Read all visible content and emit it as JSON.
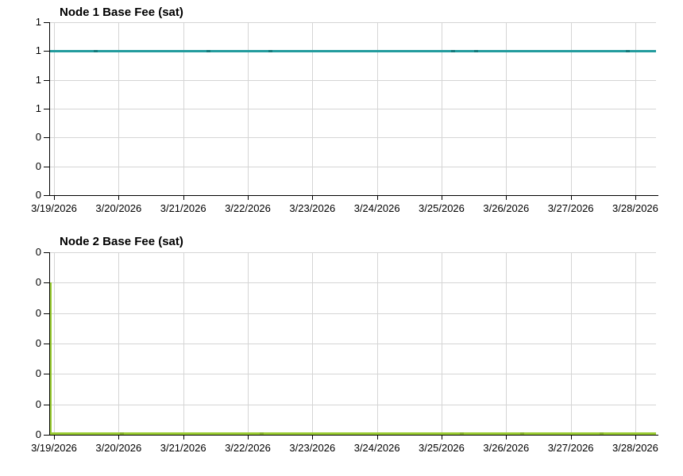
{
  "page": {
    "background_color": "#ffffff",
    "text_color": "#000000"
  },
  "chart_data": [
    {
      "type": "line",
      "title": "Node 1 Base Fee (sat)",
      "xlabel": "",
      "ylabel": "",
      "grid": true,
      "grid_color": "#d5d5d5",
      "axis_color": "#000000",
      "legend": "none",
      "y_tick_labels": [
        "1",
        "1",
        "1",
        "1",
        "0",
        "0",
        "0"
      ],
      "ylim": [
        0,
        1.2
      ],
      "x_tick_labels": [
        "3/19/2026",
        "3/20/2026",
        "3/21/2026",
        "3/22/2026",
        "3/23/2026",
        "3/24/2026",
        "3/25/2026",
        "3/26/2026",
        "3/27/2026",
        "3/28/2026"
      ],
      "categories": [
        "3/19/2026",
        "3/20/2026",
        "3/21/2026",
        "3/22/2026",
        "3/23/2026",
        "3/24/2026",
        "3/25/2026",
        "3/26/2026",
        "3/27/2026",
        "3/28/2026"
      ],
      "series": [
        {
          "name": "Node 1 Base Fee (sat)",
          "color": "#239c9e",
          "marker_color": "#12797b",
          "values": [
            1,
            1,
            1,
            1,
            1,
            1,
            1,
            1,
            1,
            1
          ],
          "constant_value": 1,
          "points_frac": [
            [
              0,
              0.8333
            ],
            [
              1,
              0.8333
            ]
          ],
          "marker_x_fracs": [
            0.076,
            0.263,
            0.364,
            0.665,
            0.704,
            0.953
          ]
        }
      ]
    },
    {
      "type": "line",
      "title": "Node 2 Base Fee (sat)",
      "xlabel": "",
      "ylabel": "",
      "grid": true,
      "grid_color": "#d5d5d5",
      "axis_color": "#000000",
      "legend": "none",
      "y_tick_labels": [
        "0",
        "0",
        "0",
        "0",
        "0",
        "0",
        "0"
      ],
      "x_tick_labels": [
        "3/19/2026",
        "3/20/2026",
        "3/21/2026",
        "3/22/2026",
        "3/23/2026",
        "3/24/2026",
        "3/25/2026",
        "3/26/2026",
        "3/27/2026",
        "3/28/2026"
      ],
      "categories": [
        "3/19/2026",
        "3/20/2026",
        "3/21/2026",
        "3/22/2026",
        "3/23/2026",
        "3/24/2026",
        "3/25/2026",
        "3/26/2026",
        "3/27/2026",
        "3/28/2026"
      ],
      "series": [
        {
          "name": "Node 2 Base Fee (sat)",
          "color": "#9acd32",
          "marker_color": "#85b227",
          "values": [
            0,
            0,
            0,
            0,
            0,
            0,
            0,
            0,
            0,
            0
          ],
          "constant_value": 0,
          "points_frac": [
            [
              0.002,
              0.8333
            ],
            [
              0.002,
              0
            ],
            [
              1,
              0
            ]
          ],
          "marker_x_fracs": [
            0.12,
            0.35,
            0.68,
            0.78,
            0.91
          ]
        }
      ]
    }
  ]
}
